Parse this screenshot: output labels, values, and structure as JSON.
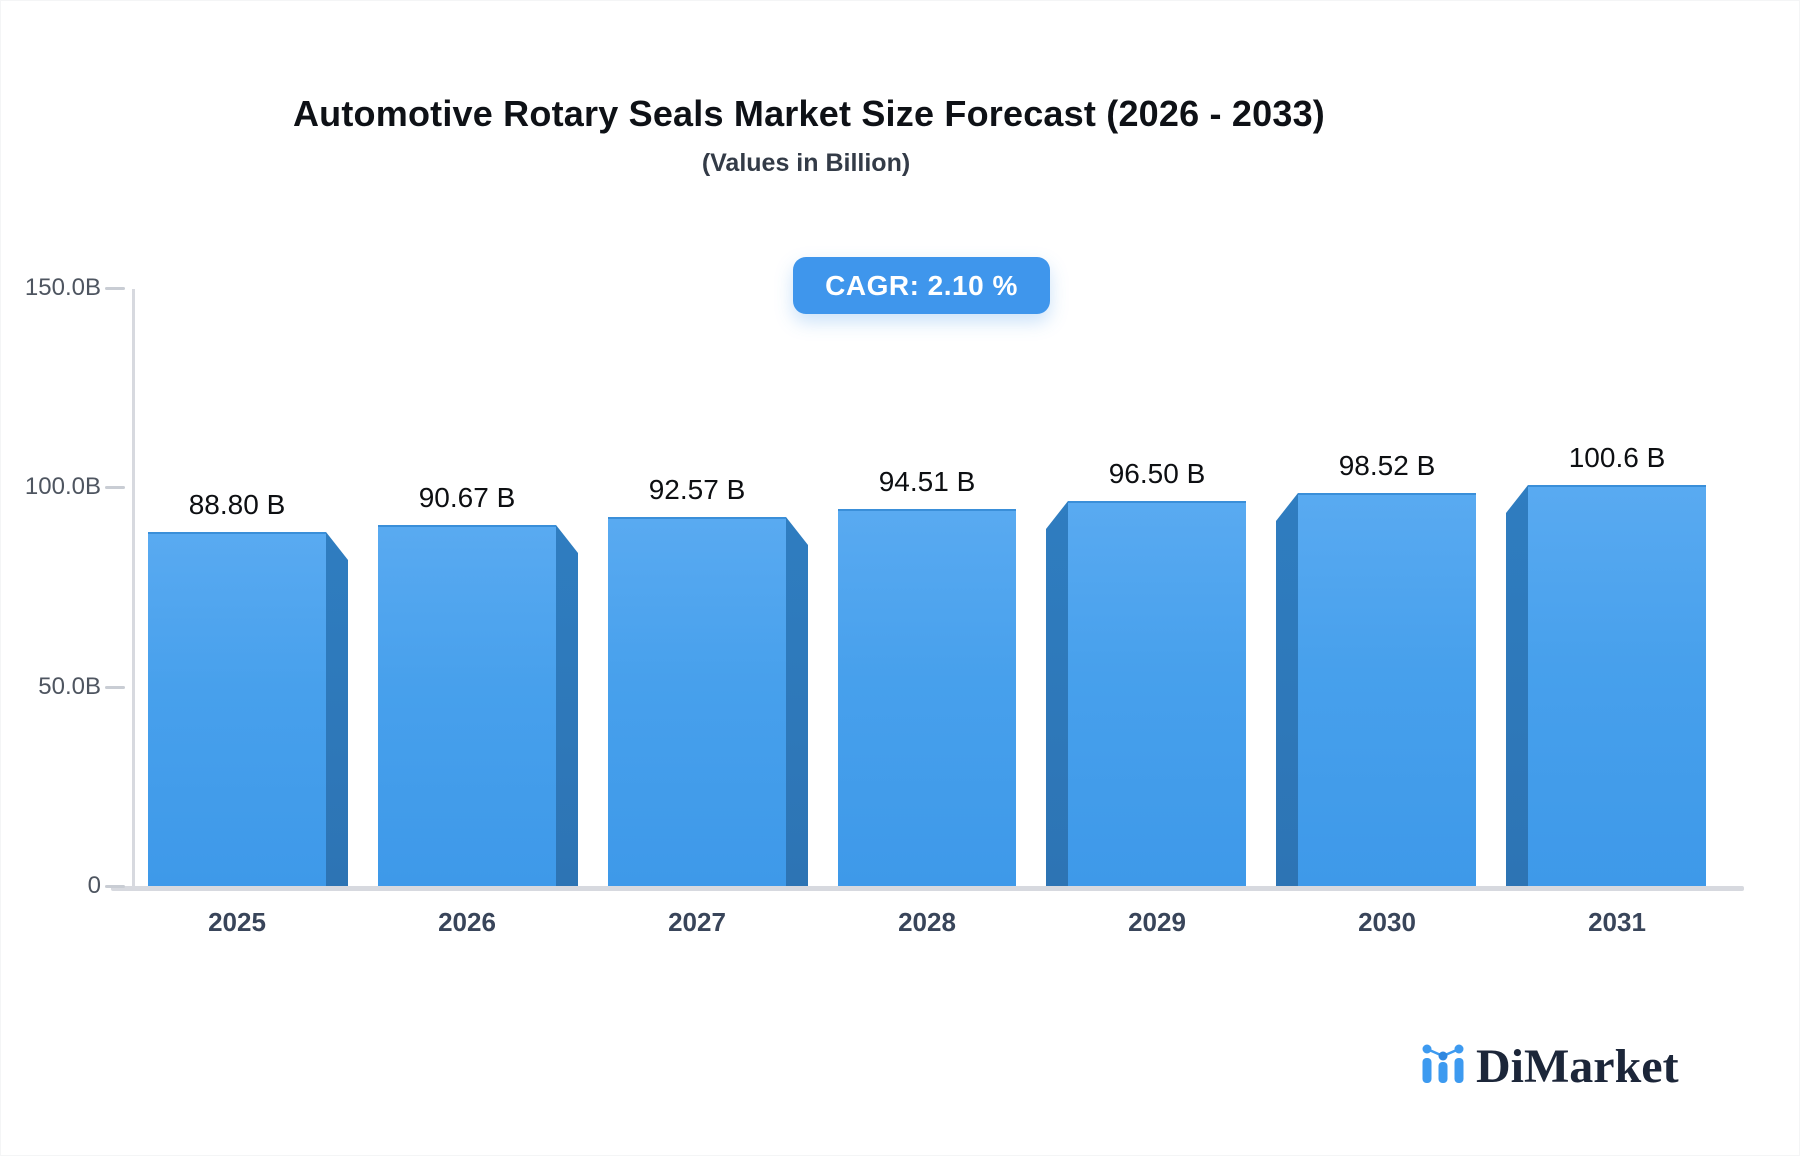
{
  "header": {
    "title": "Automotive Rotary Seals Market Size Forecast (2026 - 2033)",
    "subtitle": "(Values in Billion)",
    "cagr_label": "CAGR: 2.10 %"
  },
  "chart_data": {
    "type": "bar",
    "title": "Automotive Rotary Seals Market Size Forecast (2026 - 2033)",
    "subtitle": "(Values in Billion)",
    "cagr_percent": 2.1,
    "categories": [
      "2025",
      "2026",
      "2027",
      "2028",
      "2029",
      "2030",
      "2031"
    ],
    "values": [
      88.8,
      90.67,
      92.57,
      94.51,
      96.5,
      98.52,
      100.6
    ],
    "value_labels": [
      "88.80 B",
      "90.67 B",
      "92.57 B",
      "94.51 B",
      "96.50 B",
      "98.52 B",
      "100.6 B"
    ],
    "xlabel": "",
    "ylabel": "",
    "ylim": [
      0,
      150
    ],
    "y_ticks": [
      {
        "value": 150,
        "label": "150.0B"
      },
      {
        "value": 100,
        "label": "100.0B"
      },
      {
        "value": 50,
        "label": "50.0B"
      },
      {
        "value": 0,
        "label": "0"
      }
    ],
    "grid": false,
    "legend": "none",
    "bar_style": "3d-bevel",
    "bar_color_top": "#59aaf1",
    "bar_color_bottom": "#3e99e9",
    "bar_side_color": "#2d74b4"
  },
  "footer": {
    "brand": "DiMarket"
  },
  "colors": {
    "accent_blue": "#3F96EC",
    "axis_gray": "#d7d9df",
    "value_label_text": "#0d0f12",
    "year_label_text": "#39455a",
    "y_tick_text": "#4e5560",
    "logo_navy": "#1c2639",
    "logo_blue": "#3d9af0"
  }
}
